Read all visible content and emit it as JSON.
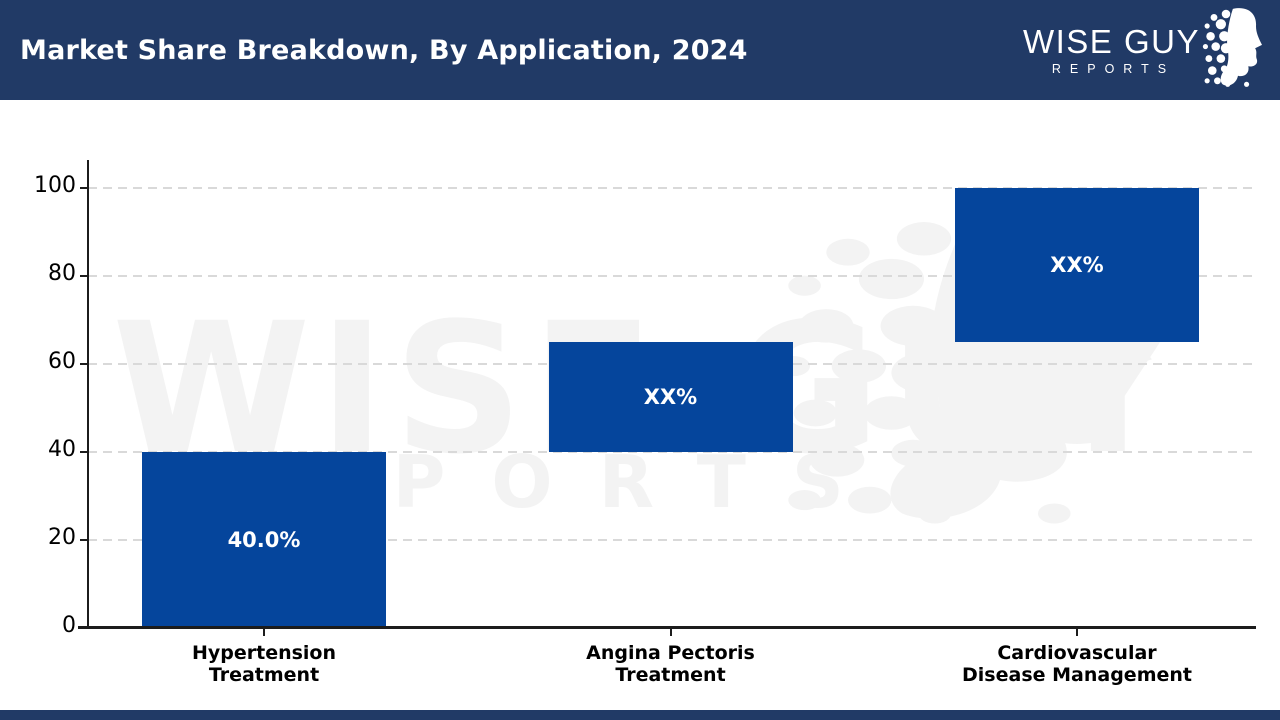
{
  "header": {
    "title": "Market Share Breakdown, By Application, 2024",
    "logo_line1": "WISE GUY",
    "logo_line2": "REPORTS"
  },
  "watermark": {
    "line1": "WISE GUY",
    "line2": "REPORTS"
  },
  "colors": {
    "header_bg": "#213A66",
    "footer_bg": "#213A66",
    "bar_fill": "#05459C",
    "bar_label_text": "#FFFFFF",
    "axis": "#1C1C1C",
    "gridline": "#D9D9D9",
    "watermark": "#F3F3F3",
    "tick_text": "#000000"
  },
  "chart_data": {
    "type": "bar",
    "subtype": "waterfall-floating",
    "title": "Market Share Breakdown, By Application, 2024",
    "categories": [
      "Hypertension Treatment",
      "Angina Pectoris Treatment",
      "Cardiovascular Disease Management"
    ],
    "category_lines": [
      [
        "Hypertension",
        "Treatment"
      ],
      [
        "Angina Pectoris",
        "Treatment"
      ],
      [
        "Cardiovascular",
        "Disease Management"
      ]
    ],
    "bars": [
      {
        "category": "Hypertension Treatment",
        "start": 0,
        "end": 40,
        "value_label": "40.0%"
      },
      {
        "category": "Angina Pectoris Treatment",
        "start": 40,
        "end": 65,
        "value_label": "XX%"
      },
      {
        "category": "Cardiovascular Disease Management",
        "start": 65,
        "end": 100,
        "value_label": "XX%"
      }
    ],
    "yticks": [
      0,
      20,
      40,
      60,
      80,
      100
    ],
    "ylim": [
      0,
      106
    ],
    "xlabel": "",
    "ylabel": "",
    "grid": "horizontal-dashed",
    "legend_position": "none"
  }
}
